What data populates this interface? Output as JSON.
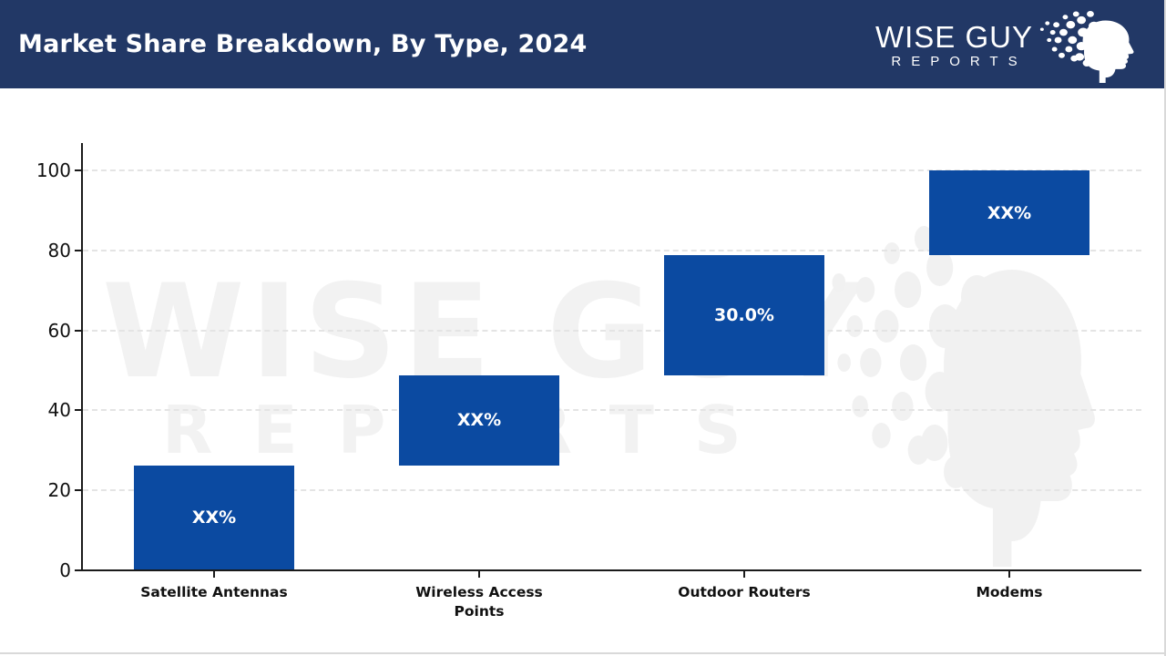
{
  "header": {
    "title": "Market Share Breakdown, By Type, 2024",
    "bg_color": "#223866",
    "logo_line1": "WISE GUY",
    "logo_line2": "REPORTS"
  },
  "watermark": {
    "line1": "WISE GUY",
    "line2": "REPORTS"
  },
  "chart_data": {
    "type": "bar",
    "variant": "waterfall",
    "title": "Market Share Breakdown, By Type, 2024",
    "categories": [
      "Satellite Antennas",
      "Wireless Access Points",
      "Outdoor Routers",
      "Modems"
    ],
    "segments": [
      {
        "category": "Satellite Antennas",
        "start": 0,
        "end": 26.2,
        "value": 26.2,
        "label": "XX%"
      },
      {
        "category": "Wireless Access Points",
        "start": 26.2,
        "end": 48.8,
        "value": 22.6,
        "label": "XX%"
      },
      {
        "category": "Outdoor Routers",
        "start": 48.8,
        "end": 78.8,
        "value": 30.0,
        "label": "30.0%"
      },
      {
        "category": "Modems",
        "start": 78.8,
        "end": 100,
        "value": 21.2,
        "label": "XX%"
      }
    ],
    "yticks": [
      0,
      20,
      40,
      60,
      80,
      100
    ],
    "ylim": [
      0,
      107
    ],
    "xlabel": "",
    "ylabel": "",
    "grid": {
      "axis": "y",
      "style": "dashed",
      "color": "#e4e4e4"
    },
    "legend": "none",
    "bar_color": "#0b4aa1",
    "bar_label_color": "#ffffff",
    "axis_color": "#1a1a1a"
  }
}
